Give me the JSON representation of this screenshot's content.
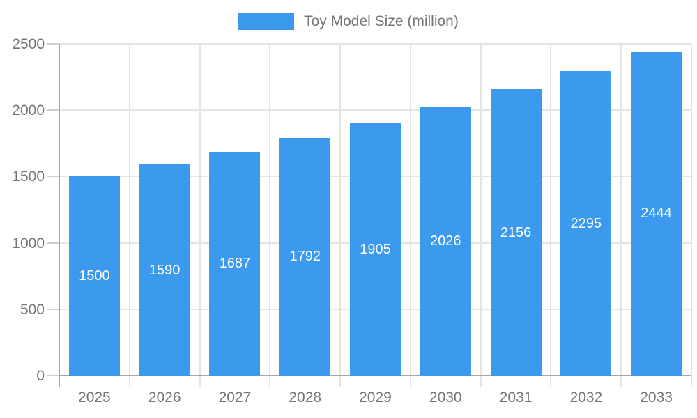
{
  "chart_data": {
    "type": "bar",
    "title": "",
    "legend": "Toy Model Size (million)",
    "legend_position": "top-center",
    "categories": [
      "2025",
      "2026",
      "2027",
      "2028",
      "2029",
      "2030",
      "2031",
      "2032",
      "2033"
    ],
    "series": [
      {
        "name": "Toy Model Size (million)",
        "values": [
          1500,
          1590,
          1687,
          1792,
          1905,
          2026,
          2156,
          2295,
          2444
        ]
      }
    ],
    "data_labels": "inside-center",
    "xlabel": "",
    "ylabel": "",
    "ylim": [
      0,
      2500
    ],
    "y_ticks": [
      0,
      500,
      1000,
      1500,
      2000,
      2500
    ],
    "grid": "horizontal-and-vertical",
    "colors": {
      "bar": "#3b99ee",
      "axis_text": "#757575",
      "value_label_text": "#ffffff",
      "grid_line": "#e4e4e4",
      "axis_line": "#a6a6a6",
      "background": "#ffffff"
    }
  }
}
